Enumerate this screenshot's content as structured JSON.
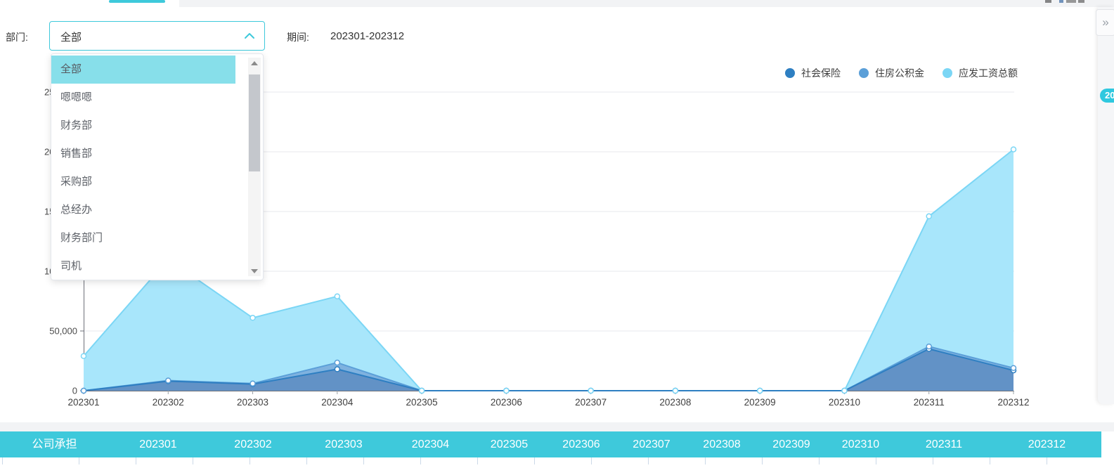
{
  "top_bar": {
    "active_tab_indicator_color": "#3EC9DB"
  },
  "filter_bar": {
    "department_label": "部门:",
    "department_value": "全部",
    "period_label": "期间:",
    "period_value": "202301-202312"
  },
  "dropdown": {
    "selected": "全部",
    "options": [
      "全部",
      "嗯嗯嗯",
      "财务部",
      "销售部",
      "采购部",
      "总经办",
      "财务部门",
      "司机"
    ]
  },
  "legend": [
    {
      "label": "社会保险",
      "color": "#2E7FC2"
    },
    {
      "label": "住房公积金",
      "color": "#5B9FD8"
    },
    {
      "label": "应发工资总额",
      "color": "#7BD6F5"
    }
  ],
  "chart_data": {
    "type": "area",
    "title": "",
    "xlabel": "",
    "ylabel": "",
    "categories": [
      "202301",
      "202302",
      "202303",
      "202304",
      "202305",
      "202306",
      "202307",
      "202308",
      "202309",
      "202310",
      "202311",
      "202312"
    ],
    "series": [
      {
        "name": "社会保险",
        "line_color": "#2E7FC2",
        "fill_color": "#6292C6",
        "values": [
          0,
          8000,
          5500,
          18000,
          0,
          0,
          0,
          0,
          0,
          0,
          35000,
          17000
        ]
      },
      {
        "name": "住房公积金",
        "line_color": "#5B9FD8",
        "fill_color": "#7FB2DF",
        "values": [
          0,
          8500,
          6000,
          23500,
          0,
          0,
          0,
          0,
          0,
          0,
          37000,
          19000
        ]
      },
      {
        "name": "应发工资总额",
        "line_color": "#7BD6F5",
        "fill_color": "#A8E6FB",
        "values": [
          29000,
          110000,
          61000,
          79000,
          0,
          0,
          0,
          0,
          0,
          0,
          146000,
          202000
        ]
      }
    ],
    "y_ticks": [
      "0",
      "50,000",
      "100,000",
      "150,000",
      "200,000",
      "250,000"
    ],
    "ylim": [
      0,
      250000
    ],
    "grid": true,
    "legend_position": "top-right"
  },
  "side_panel": {
    "collapse_label": "»",
    "badge_text": "20"
  },
  "bottom_table": {
    "header": [
      "公司承担",
      "202301",
      "202302",
      "202303",
      "202304",
      "202305",
      "202306",
      "202307",
      "202308",
      "202309",
      "202310",
      "202311",
      "202312"
    ]
  },
  "accent_color": "#3EC9DB"
}
